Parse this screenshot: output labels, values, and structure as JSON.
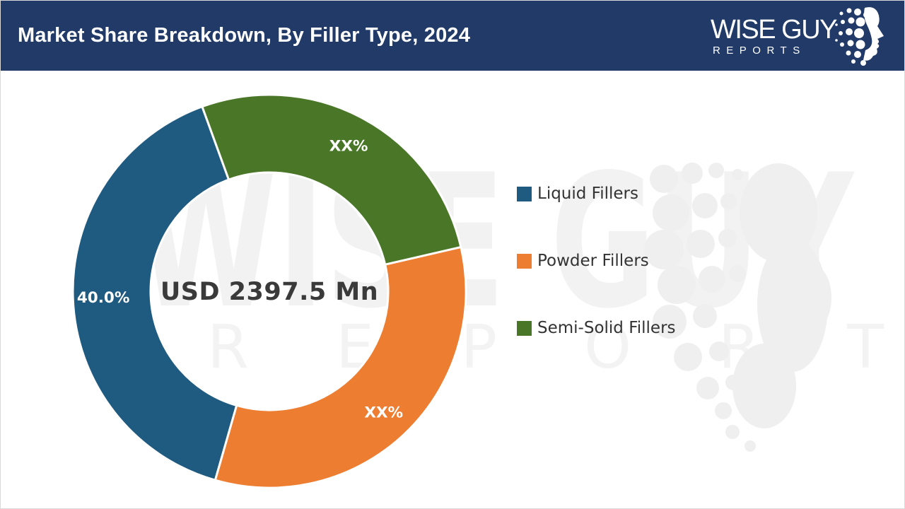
{
  "header": {
    "title": "Market Share Breakdown, By Filler Type, 2024",
    "background": "#213A67",
    "logo": {
      "wordmark": "WISE GUY",
      "subtitle": "REPORTS"
    }
  },
  "watermark": {
    "line1": "WISE GUY",
    "line2": "R E P O R T S"
  },
  "chart_data": {
    "type": "pie",
    "subtype": "donut",
    "title": "Market Share Breakdown, By Filler Type, 2024",
    "center_label": "USD 2397.5 Mn",
    "start_angle_deg": 110,
    "direction": "clockwise",
    "inner_radius_ratio": 0.6,
    "legend_position": "right",
    "slices": [
      {
        "name": "Semi-Solid Fillers",
        "label": "XX%",
        "color": "#4A7727",
        "arc_deg": 97,
        "share_pct_est": 27
      },
      {
        "name": "Powder Fillers",
        "label": "XX%",
        "color": "#ED7D31",
        "arc_deg": 119,
        "share_pct_est": 33
      },
      {
        "name": "Liquid Fillers",
        "label": "40.0%",
        "color": "#1F5A80",
        "arc_deg": 144,
        "share_pct_est": 40
      }
    ],
    "legend": [
      {
        "label": "Liquid Fillers",
        "color": "#1F5A80"
      },
      {
        "label": "Powder Fillers",
        "color": "#ED7D31"
      },
      {
        "label": "Semi-Solid Fillers",
        "color": "#4A7727"
      }
    ]
  }
}
